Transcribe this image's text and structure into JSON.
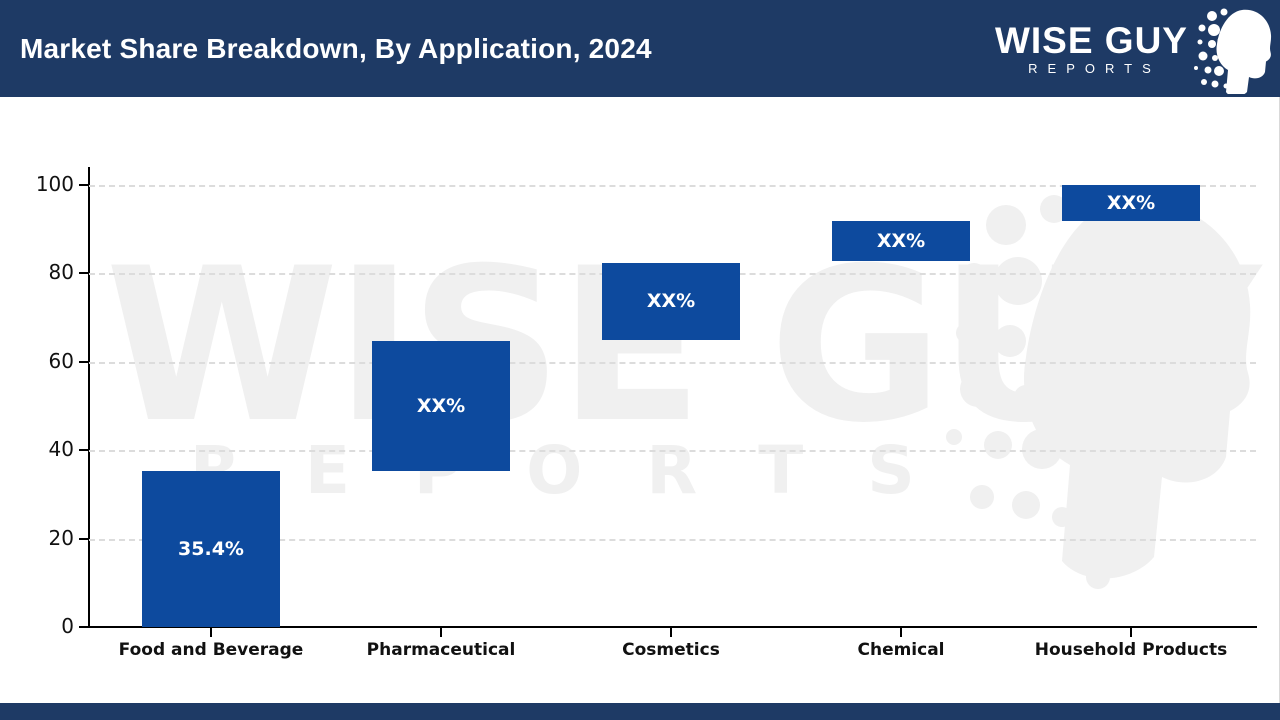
{
  "header": {
    "title": "Market Share Breakdown, By Application, 2024",
    "brand": {
      "name": "WISE GUY",
      "sub": "REPORTS"
    }
  },
  "watermark": {
    "line1": "WISE GUY",
    "line2": "REPORTS"
  },
  "chart_data": {
    "type": "bar",
    "subtype": "waterfall",
    "title": "Market Share Breakdown, By Application, 2024",
    "xlabel": "",
    "ylabel": "",
    "categories": [
      "Food and Beverage",
      "Pharmaceutical",
      "Cosmetics",
      "Chemical",
      "Household Products"
    ],
    "segments": [
      {
        "category": "Food and Beverage",
        "start": 0,
        "end": 35.4,
        "label": "35.4%"
      },
      {
        "category": "Pharmaceutical",
        "start": 35.4,
        "end": 64.6,
        "label": "XX%"
      },
      {
        "category": "Cosmetics",
        "start": 64.9,
        "end": 82.4,
        "label": "XX%"
      },
      {
        "category": "Chemical",
        "start": 82.8,
        "end": 91.9,
        "label": "XX%"
      },
      {
        "category": "Household Products",
        "start": 91.9,
        "end": 100,
        "label": "XX%"
      }
    ],
    "yticks": [
      0,
      20,
      40,
      60,
      80,
      100
    ],
    "ylim": [
      0,
      105
    ],
    "grid": true,
    "legend": "none",
    "bar_color": "#0d4a9e",
    "gridline_color": "#dcdcdc",
    "header_bg_color": "#1e3a65",
    "watermark_color": "#f0f0f0"
  }
}
